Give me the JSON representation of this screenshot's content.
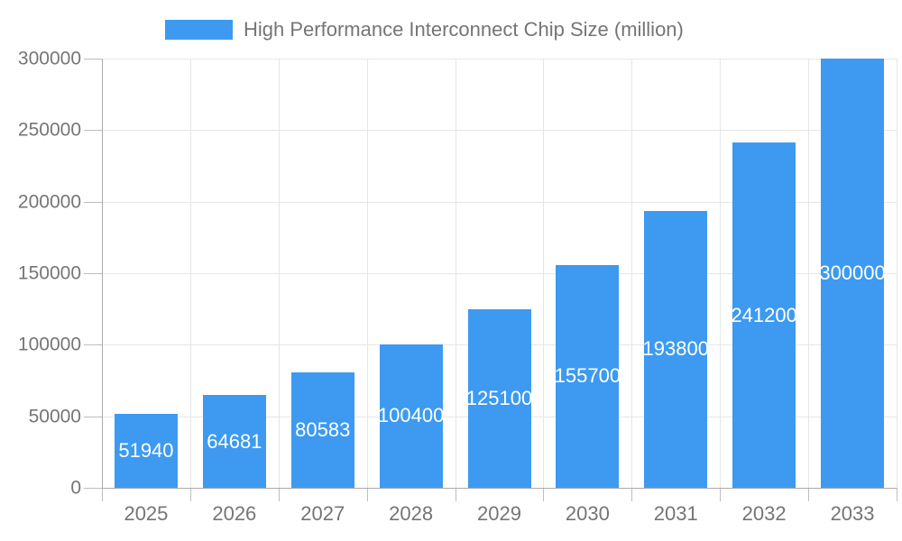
{
  "chart_data": {
    "type": "bar",
    "title": "High Performance Interconnect Chip Size (million)",
    "legend": [
      {
        "label": "High Performance Interconnect Chip Size (million)"
      }
    ],
    "legend_position": "top",
    "categories": [
      "2025",
      "2026",
      "2027",
      "2028",
      "2029",
      "2030",
      "2031",
      "2032",
      "2033"
    ],
    "values": [
      51940,
      64681,
      80583,
      100400,
      125100,
      155700,
      193800,
      241200,
      300000
    ],
    "value_labels": [
      "51940",
      "64681",
      "80583",
      "100400",
      "125100",
      "155700",
      "193800",
      "241200",
      "300000"
    ],
    "xlabel": "",
    "ylabel": "",
    "ylim": [
      0,
      300000
    ],
    "ytick_interval": 50000,
    "ytick_labels": [
      "0",
      "50000",
      "100000",
      "150000",
      "200000",
      "250000",
      "300000"
    ],
    "grid": true
  },
  "colors": {
    "bar": "#3d9af0",
    "value_label": "#ffffff",
    "axis_text": "#757575",
    "legend_text": "#757575",
    "gridline": "#e6e6e6",
    "axis_line": "#ababab",
    "tick": "#bdbdbd",
    "background": "#ffffff"
  }
}
